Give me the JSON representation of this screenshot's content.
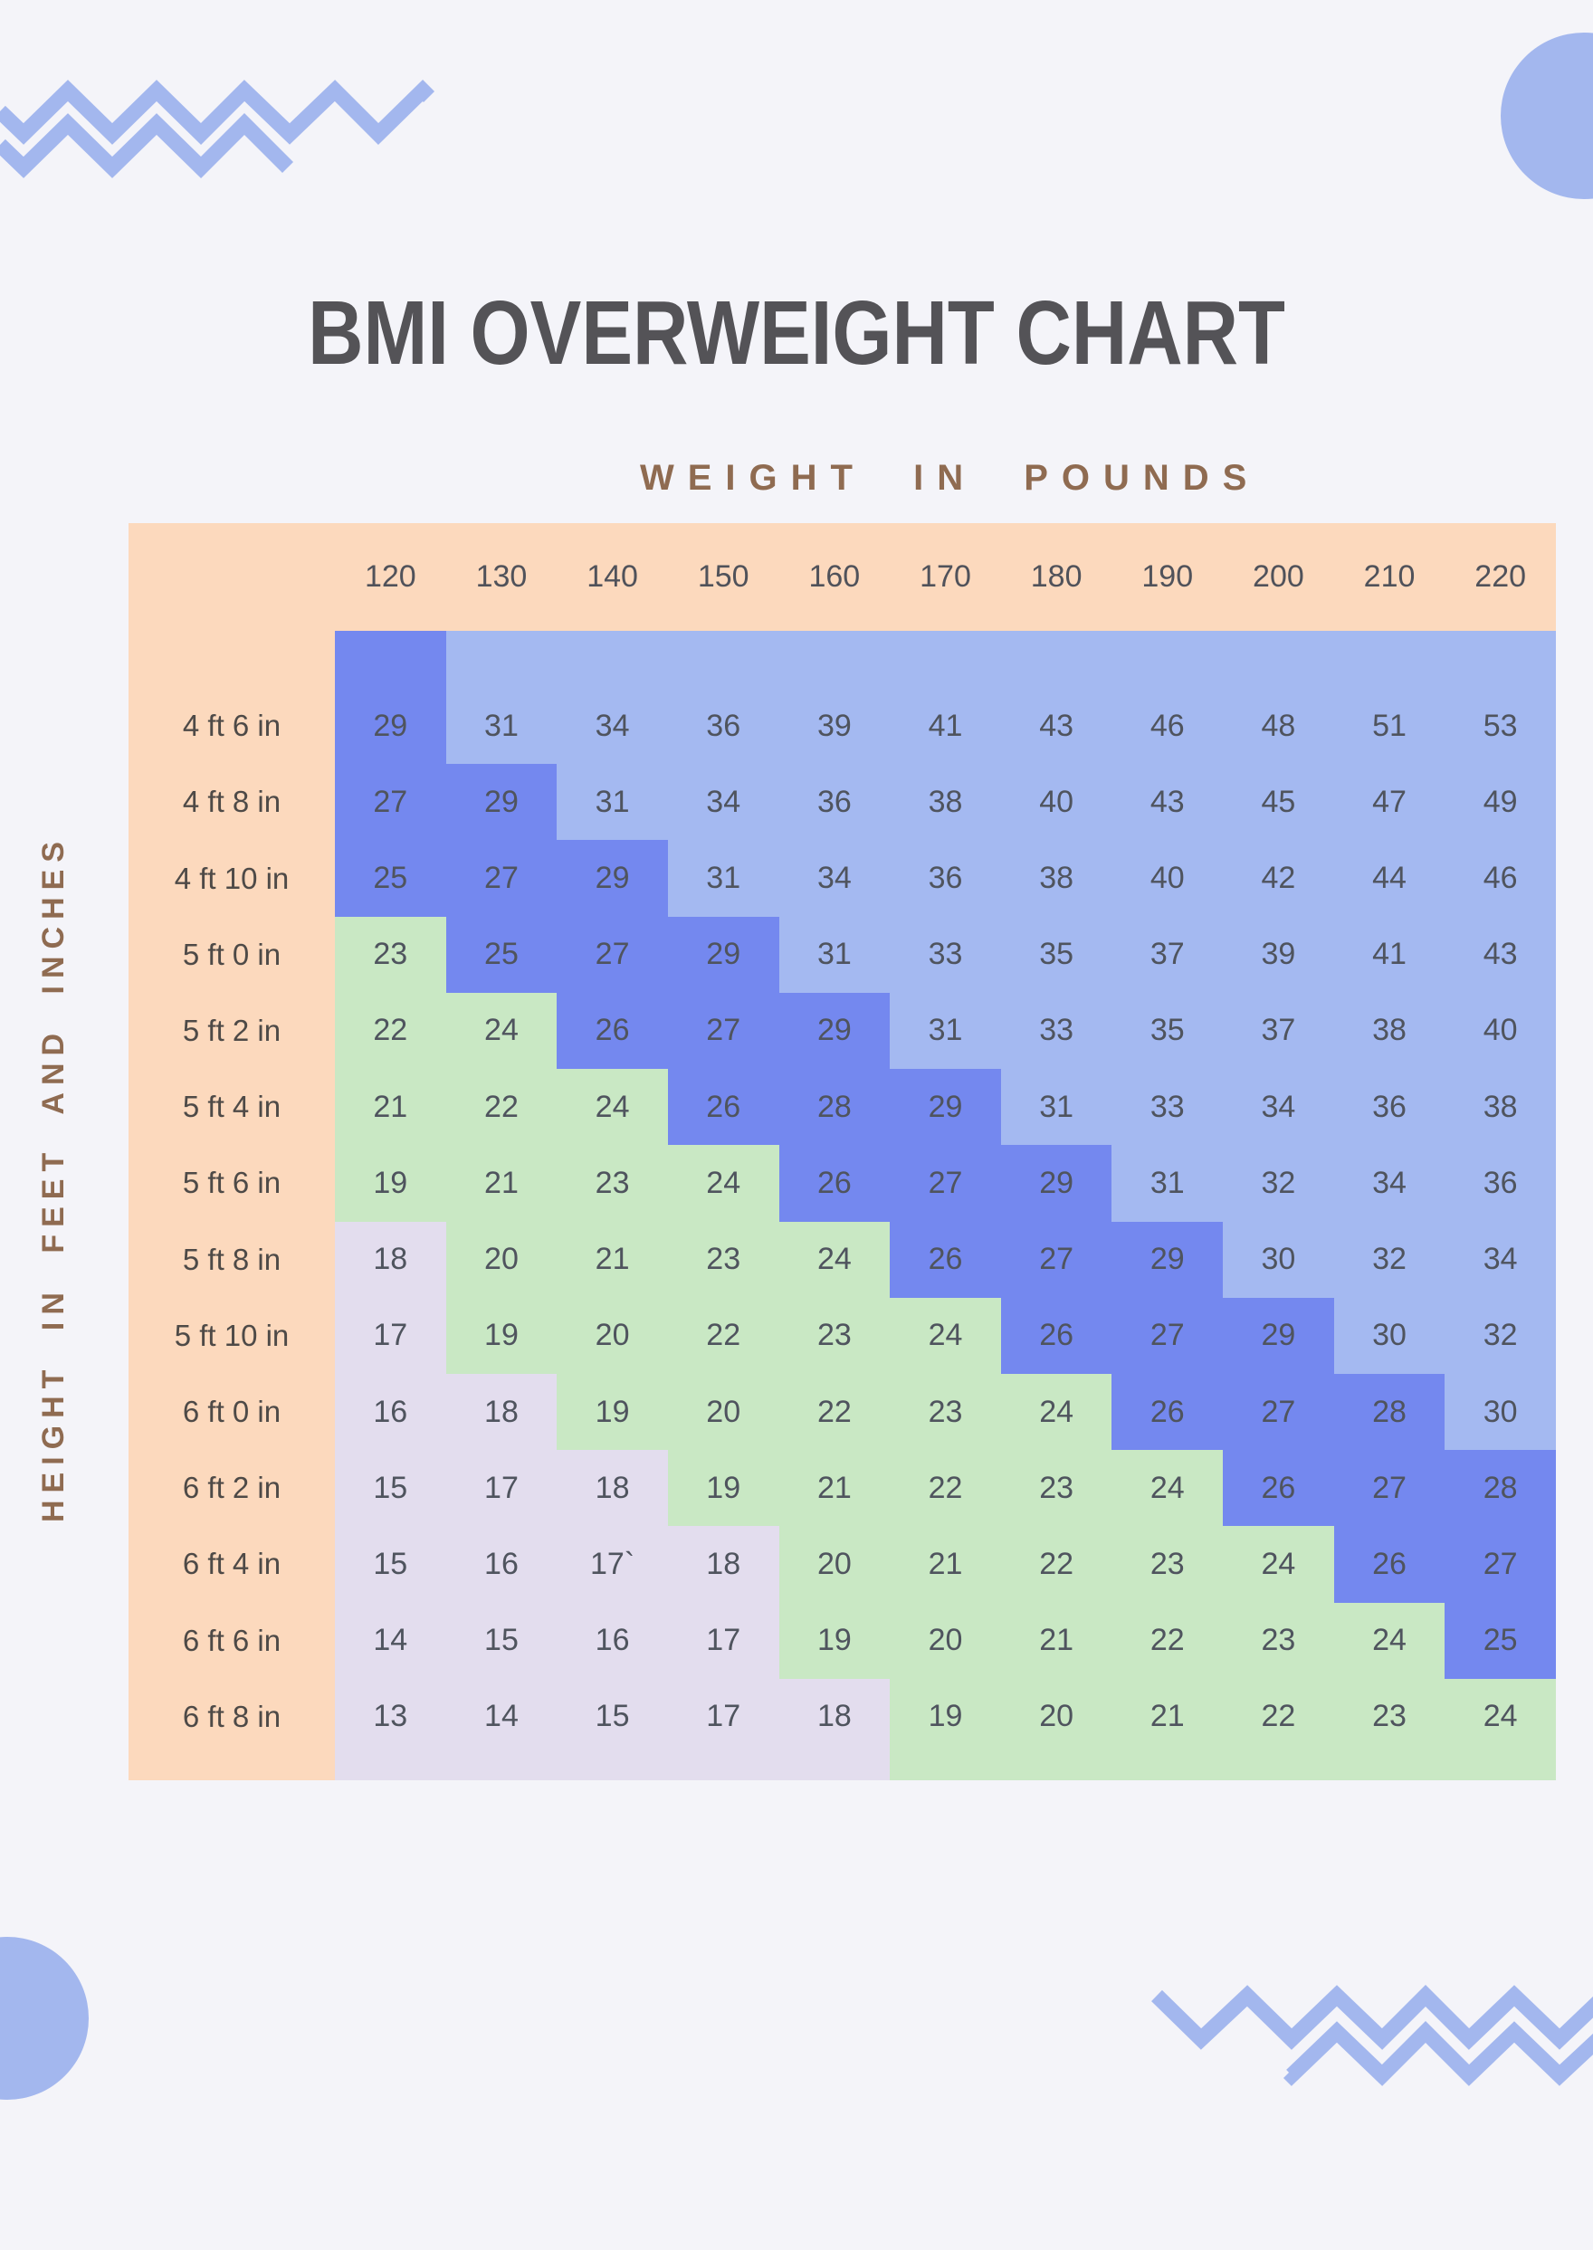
{
  "title": "BMI OVERWEIGHT CHART",
  "colors": {
    "background": "#f4f4f9",
    "decoration": "#a3b7ee",
    "header_band": "#fcd9bd",
    "title_text": "#545357",
    "axis_title_text": "#8f6b51",
    "band_underweight_18_or_less": "#e3ddee",
    "band_normal_19_to_24": "#c9e8c4",
    "band_overweight_25_to_29": "#7488ef",
    "band_obese_30_plus": "#a4b9f1"
  },
  "chart_data": {
    "type": "heatmap",
    "title": "BMI OVERWEIGHT CHART",
    "xlabel": "WEIGHT IN POUNDS",
    "ylabel": "HEIGHT IN FEET AND INCHES",
    "columns": [
      "120",
      "130",
      "140",
      "150",
      "160",
      "170",
      "180",
      "190",
      "200",
      "210",
      "220"
    ],
    "rows": [
      {
        "label": "4 ft 6 in",
        "values": [
          "29",
          "31",
          "34",
          "36",
          "39",
          "41",
          "43",
          "46",
          "48",
          "51",
          "53"
        ]
      },
      {
        "label": "4 ft 8 in",
        "values": [
          "27",
          "29",
          "31",
          "34",
          "36",
          "38",
          "40",
          "43",
          "45",
          "47",
          "49"
        ]
      },
      {
        "label": "4 ft 10 in",
        "values": [
          "25",
          "27",
          "29",
          "31",
          "34",
          "36",
          "38",
          "40",
          "42",
          "44",
          "46"
        ]
      },
      {
        "label": "5 ft 0 in",
        "values": [
          "23",
          "25",
          "27",
          "29",
          "31",
          "33",
          "35",
          "37",
          "39",
          "41",
          "43"
        ]
      },
      {
        "label": "5 ft 2 in",
        "values": [
          "22",
          "24",
          "26",
          "27",
          "29",
          "31",
          "33",
          "35",
          "37",
          "38",
          "40"
        ]
      },
      {
        "label": "5 ft 4 in",
        "values": [
          "21",
          "22",
          "24",
          "26",
          "28",
          "29",
          "31",
          "33",
          "34",
          "36",
          "38"
        ]
      },
      {
        "label": "5 ft 6 in",
        "values": [
          "19",
          "21",
          "23",
          "24",
          "26",
          "27",
          "29",
          "31",
          "32",
          "34",
          "36"
        ]
      },
      {
        "label": "5 ft 8 in",
        "values": [
          "18",
          "20",
          "21",
          "23",
          "24",
          "26",
          "27",
          "29",
          "30",
          "32",
          "34"
        ]
      },
      {
        "label": "5 ft 10 in",
        "values": [
          "17",
          "19",
          "20",
          "22",
          "23",
          "24",
          "26",
          "27",
          "29",
          "30",
          "32"
        ]
      },
      {
        "label": "6 ft 0 in",
        "values": [
          "16",
          "18",
          "19",
          "20",
          "22",
          "23",
          "24",
          "26",
          "27",
          "28",
          "30"
        ]
      },
      {
        "label": "6 ft 2 in",
        "values": [
          "15",
          "17",
          "18",
          "19",
          "21",
          "22",
          "23",
          "24",
          "26",
          "27",
          "28"
        ]
      },
      {
        "label": "6 ft 4 in",
        "values": [
          "15",
          "16",
          "17`",
          "18",
          "20",
          "21",
          "22",
          "23",
          "24",
          "26",
          "27"
        ]
      },
      {
        "label": "6 ft 6 in",
        "values": [
          "14",
          "15",
          "16",
          "17",
          "19",
          "20",
          "21",
          "22",
          "23",
          "24",
          "25"
        ]
      },
      {
        "label": "6 ft 8 in",
        "values": [
          "13",
          "14",
          "15",
          "17",
          "18",
          "19",
          "20",
          "21",
          "22",
          "23",
          "24"
        ]
      }
    ],
    "value_bands": {
      "underweight": "<= 18",
      "normal": "19 - 24",
      "overweight": "25 - 29",
      "obese": ">= 30"
    },
    "legend_position": "none",
    "grid": false
  }
}
